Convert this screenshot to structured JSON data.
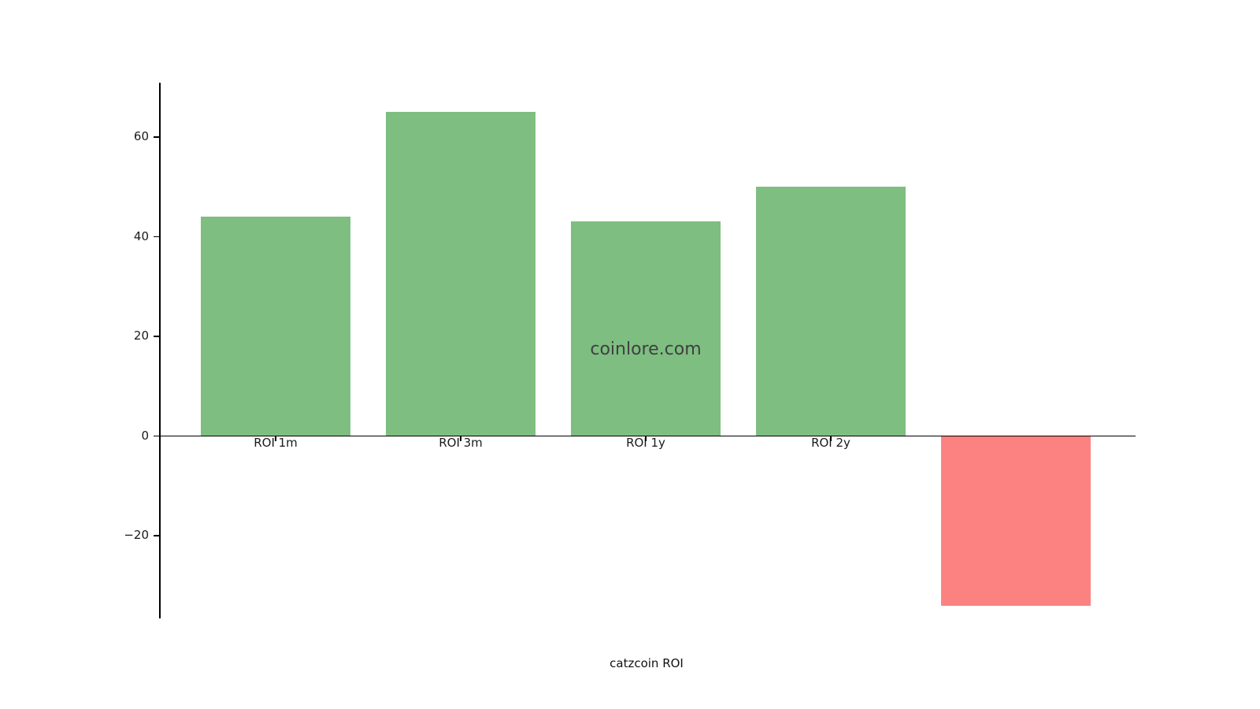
{
  "chart_data": {
    "type": "bar",
    "categories": [
      "ROI 1m",
      "ROI 3m",
      "ROI 1y",
      "ROI 2y",
      ""
    ],
    "values": [
      44,
      65,
      43,
      50,
      -34
    ],
    "title": "",
    "xlabel": "catzcoin ROI",
    "ylabel": "",
    "yticks": [
      60,
      40,
      20,
      0,
      -20
    ],
    "ylim": [
      -36.6,
      70.9
    ],
    "grid": false,
    "legend": null,
    "positive_color": "#7ebe81",
    "negative_color": "#fc8282",
    "axis_color": "#000000",
    "tick_label_color": "#1a1a1a",
    "watermark": "coinlore.com",
    "watermark_color": "#3f3f3f"
  }
}
